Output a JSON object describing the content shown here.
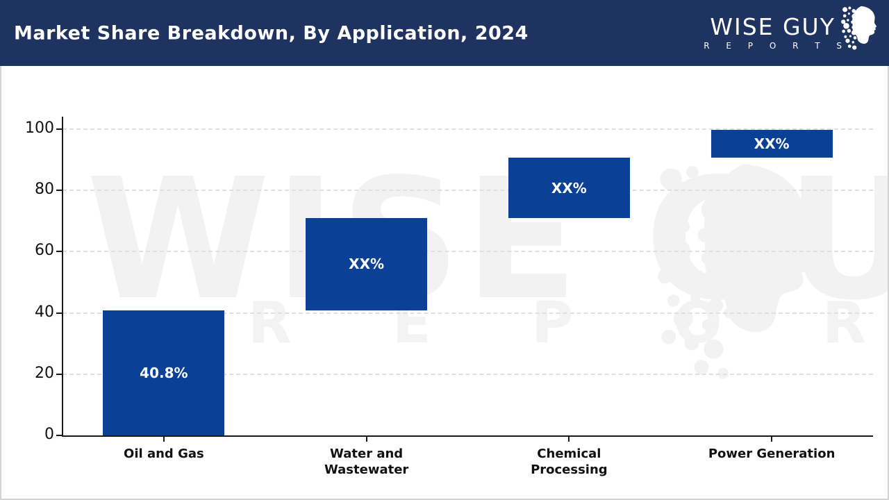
{
  "header": {
    "title": "Market Share Breakdown, By Application, 2024",
    "bg_color": "#1f3361",
    "logo": {
      "wordmark": "WISE GUY",
      "subtext": "R E P O R T S"
    }
  },
  "watermark": {
    "wordmark": "WISE GUY",
    "subtext": "R E P O R T S"
  },
  "chart_data": {
    "type": "bar",
    "subtype": "waterfall",
    "title": "Market Share Breakdown, By Application, 2024",
    "categories": [
      "Oil and Gas",
      "Water and\nWastewater",
      "Chemical\nProcessing",
      "Power Generation"
    ],
    "segments": [
      {
        "category": "Oil and Gas",
        "start": 0,
        "end": 40.8,
        "label": "40.8%"
      },
      {
        "category": "Water and Wastewater",
        "start": 40.8,
        "end": 71.0,
        "label": "XX%"
      },
      {
        "category": "Chemical Processing",
        "start": 71.0,
        "end": 90.6,
        "label": "XX%"
      },
      {
        "category": "Power Generation",
        "start": 90.6,
        "end": 99.8,
        "label": "XX%"
      }
    ],
    "yticks": [
      0,
      20,
      40,
      60,
      80,
      100
    ],
    "ylim": [
      0,
      105
    ],
    "grid": "horizontal-dashed",
    "legend": "none",
    "bar_color": "#0a4196",
    "value_label_color": "#ffffff",
    "axis_color": "#1a1a1a"
  }
}
